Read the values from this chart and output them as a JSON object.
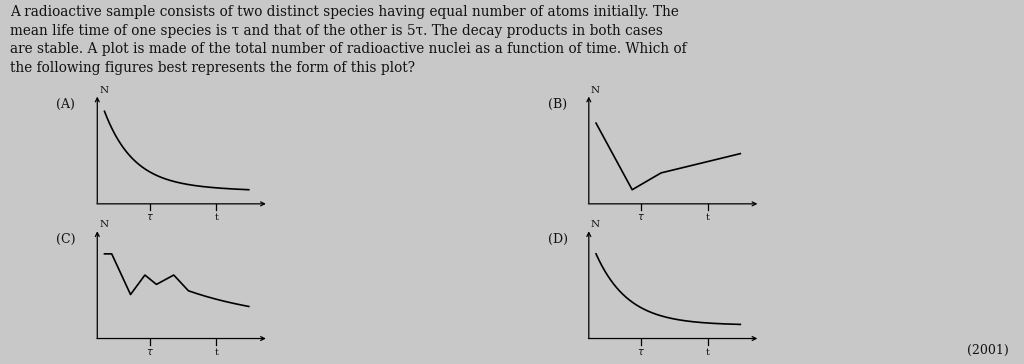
{
  "background_color": "#c8c8c8",
  "text_color": "#111111",
  "paragraph_line1": "A radioactive sample consists of two distinct species having equal number of atoms initially. The",
  "paragraph_line2": "mean life time of one species is τ and that of the other is 5τ. The decay products in both cases",
  "paragraph_line3": "are stable. A plot is made of the total number of radioactive nuclei as a function of time. Which of",
  "paragraph_line4": "the following figures best represents the form of this plot?",
  "year": "(2001)",
  "graph_lw": 1.2,
  "axes_lw": 0.9,
  "fontsize_label": 8.5,
  "fontsize_option": 9,
  "fontsize_N": 7.5,
  "fontsize_tick": 7,
  "fontsize_year": 9
}
